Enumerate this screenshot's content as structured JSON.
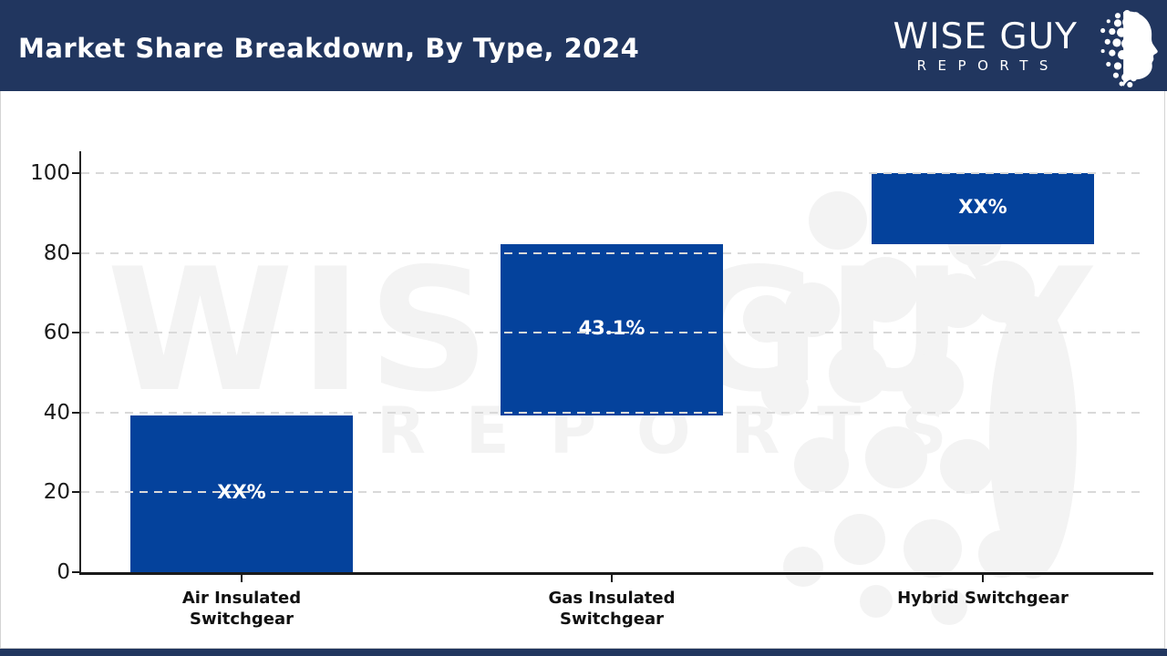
{
  "header": {
    "title": "Market Share Breakdown, By Type, 2024",
    "logo": {
      "line1": "WISE GUY",
      "line2": "REPORTS"
    }
  },
  "watermark": {
    "line1": "WISE GUY",
    "line2": "REPORTS"
  },
  "chart_data": {
    "type": "bar",
    "subtype": "waterfall-stacked-share",
    "title": "Market Share Breakdown, By Type, 2024",
    "categories": [
      "Air Insulated Switchgear",
      "Gas Insulated Switchgear",
      "Hybrid Switchgear"
    ],
    "category_label_lines": [
      [
        "Air Insulated",
        "Switchgear"
      ],
      [
        "Gas Insulated",
        "Switchgear"
      ],
      [
        "Hybrid Switchgear"
      ]
    ],
    "segments": [
      {
        "category": "Air Insulated Switchgear",
        "start": 0,
        "end": 39.2,
        "label": "XX%"
      },
      {
        "category": "Gas Insulated Switchgear",
        "start": 39.2,
        "end": 82.3,
        "label": "43.1%"
      },
      {
        "category": "Hybrid Switchgear",
        "start": 82.3,
        "end": 100,
        "label": "XX%"
      }
    ],
    "ylim": [
      0,
      100
    ],
    "yticks": [
      0,
      20,
      40,
      60,
      80,
      100
    ],
    "xlabel": "",
    "ylabel": "",
    "legend": "none",
    "grid": {
      "horizontal": true,
      "style": "dashed",
      "drawn_over_bars": true
    }
  },
  "colors": {
    "header_bg": "#21365f",
    "footer_bg": "#21365f",
    "bar": "#04429c",
    "bar_label": "#ffffff",
    "gridline": "#d9d9d9",
    "axis": "#1a1a1a",
    "watermark": "#f3f3f3"
  }
}
